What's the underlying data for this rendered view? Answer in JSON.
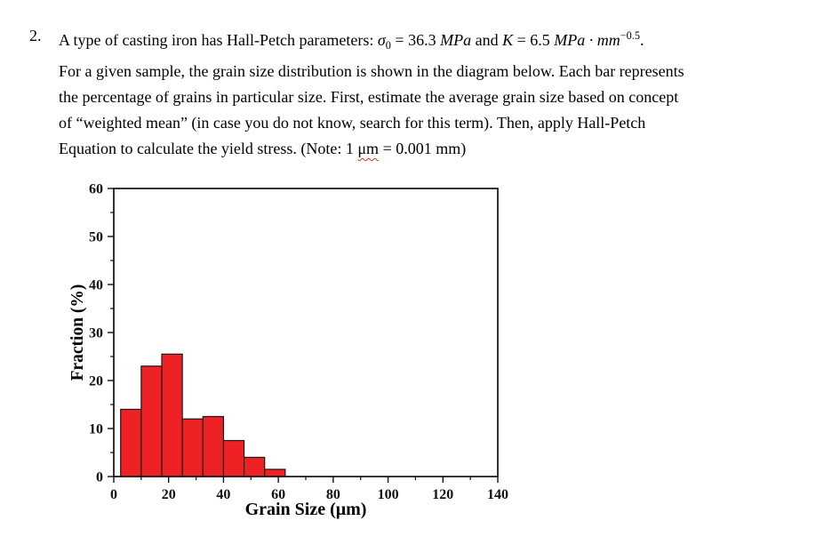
{
  "problem": {
    "number": "2.",
    "lines": [
      [
        {
          "t": "A type of casting iron has Hall-Petch parameters: "
        },
        {
          "t": "σ",
          "s": "i"
        },
        {
          "t": "0",
          "s": "sub"
        },
        {
          "t": " = 36.3 "
        },
        {
          "t": "MPa",
          "s": "i"
        },
        {
          "t": " and "
        },
        {
          "t": "K",
          "s": "i"
        },
        {
          "t": " = 6.5 "
        },
        {
          "t": "MPa · mm",
          "s": "i"
        },
        {
          "t": "−0.5",
          "s": "sup"
        },
        {
          "t": "."
        }
      ],
      [
        {
          "t": "For a given sample, the grain size distribution is shown in the diagram below. Each bar represents"
        }
      ],
      [
        {
          "t": "the percentage of grains in particular size. First, estimate the average grain size based on concept"
        }
      ],
      [
        {
          "t": "of “weighted mean” (in case you do not know, search for this term). Then, apply Hall-Petch"
        }
      ],
      [
        {
          "t": "Equation to calculate the yield stress. (Note: 1 "
        },
        {
          "t": "μm",
          "s": "wavy"
        },
        {
          "t": " = 0.001 mm)"
        }
      ]
    ]
  },
  "chart_data": {
    "type": "bar",
    "title": "",
    "xlabel": "Grain Size (μm)",
    "ylabel": "Fraction (%)",
    "xlim": [
      0,
      140
    ],
    "ylim": [
      0,
      60
    ],
    "x_ticks": [
      0,
      20,
      40,
      60,
      80,
      100,
      120,
      140
    ],
    "x_minor_ticks": [
      10,
      30,
      50,
      70,
      90,
      110,
      130
    ],
    "y_ticks": [
      0,
      10,
      20,
      30,
      40,
      50,
      60
    ],
    "y_minor_ticks": [
      5,
      15,
      25,
      35,
      45,
      55
    ],
    "grid": false,
    "legend": "none",
    "bar_color": "#ee2224",
    "bar_edge_color": "#1a1a1a",
    "bins_um": [
      {
        "from": 2.5,
        "to": 10,
        "percent": 14
      },
      {
        "from": 10,
        "to": 17.5,
        "percent": 23
      },
      {
        "from": 17.5,
        "to": 25,
        "percent": 25.5
      },
      {
        "from": 25,
        "to": 32.5,
        "percent": 12
      },
      {
        "from": 32.5,
        "to": 40,
        "percent": 12.5
      },
      {
        "from": 40,
        "to": 47.5,
        "percent": 7.5
      },
      {
        "from": 47.5,
        "to": 55,
        "percent": 4
      },
      {
        "from": 55,
        "to": 62.5,
        "percent": 1.5
      }
    ]
  }
}
